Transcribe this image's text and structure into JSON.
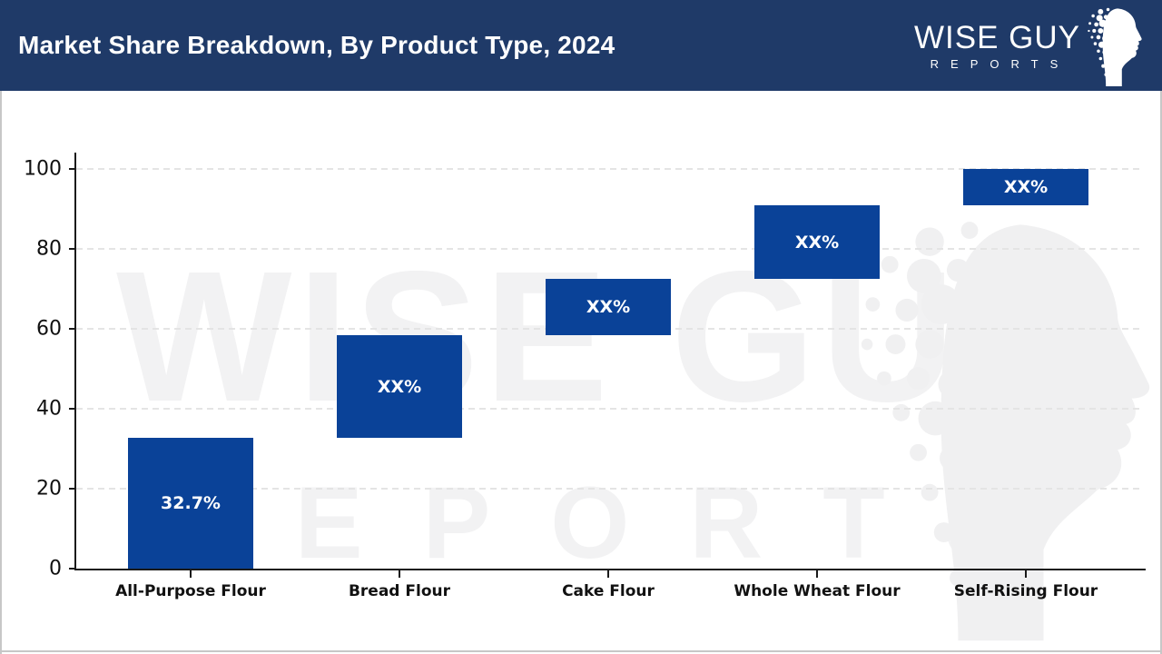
{
  "header": {
    "title": "Market Share Breakdown, By Product Type, 2024",
    "bg_color": "#1f3a68",
    "logo": {
      "line1": "WISE GUY",
      "line2": "REPORTS"
    }
  },
  "watermark": {
    "line1": "WISE GUY",
    "line2": "REPORTS"
  },
  "chart_data": {
    "type": "bar",
    "subtype": "waterfall",
    "title": "Market Share Breakdown, By Product Type, 2024",
    "categories": [
      "All-Purpose Flour",
      "Bread Flour",
      "Cake Flour",
      "Whole Wheat Flour",
      "Self-Rising Flour"
    ],
    "segments": [
      {
        "category": "All-Purpose Flour",
        "start": 0,
        "end": 32.7,
        "value": 32.7,
        "label": "32.7%"
      },
      {
        "category": "Bread Flour",
        "start": 32.7,
        "end": 58.4,
        "value": 25.7,
        "label": "XX%"
      },
      {
        "category": "Cake Flour",
        "start": 58.4,
        "end": 72.5,
        "value": 14.1,
        "label": "XX%"
      },
      {
        "category": "Whole Wheat Flour",
        "start": 72.5,
        "end": 90.9,
        "value": 18.4,
        "label": "XX%"
      },
      {
        "category": "Self-Rising Flour",
        "start": 90.9,
        "end": 100,
        "value": 9.1,
        "label": "XX%"
      }
    ],
    "y_ticks": [
      0,
      20,
      40,
      60,
      80,
      100
    ],
    "ylim": [
      0,
      104
    ],
    "xlabel": "",
    "ylabel": "",
    "grid": "horizontal-dashed",
    "legend": "none",
    "bar_color": "#0a4298",
    "label_color": "#ffffff"
  }
}
